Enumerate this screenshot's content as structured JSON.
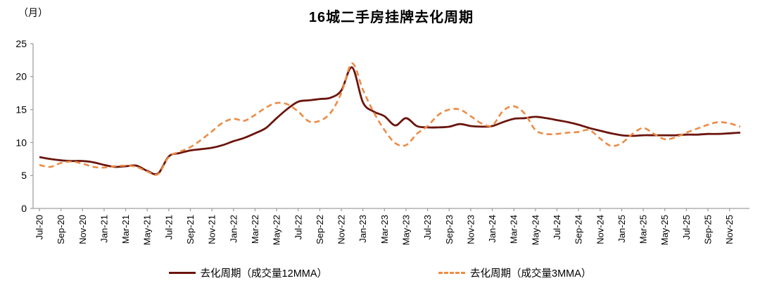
{
  "unit_label": "（月）",
  "title": "16城二手房挂牌去化周期",
  "chart_data": {
    "type": "line",
    "title": "16城二手房挂牌去化周期",
    "unit_label": "（月）",
    "ylim": [
      0,
      25
    ],
    "y_ticks": [
      0,
      5,
      10,
      15,
      20,
      25
    ],
    "x_tick_every": 2,
    "grid": false,
    "legend_position": "bottom",
    "axis_color": "#A0A0A0",
    "text_color": "#000000",
    "months": [
      "Jul-20",
      "Aug-20",
      "Sep-20",
      "Oct-20",
      "Nov-20",
      "Dec-20",
      "Jan-21",
      "Feb-21",
      "Mar-21",
      "Apr-21",
      "May-21",
      "Jun-21",
      "Jul-21",
      "Aug-21",
      "Sep-21",
      "Oct-21",
      "Nov-21",
      "Dec-21",
      "Jan-22",
      "Feb-22",
      "Mar-22",
      "Apr-22",
      "May-22",
      "Jun-22",
      "Jul-22",
      "Aug-22",
      "Sep-22",
      "Oct-22",
      "Nov-22",
      "Dec-22",
      "Jan-23",
      "Feb-23",
      "Mar-23",
      "Apr-23",
      "May-23",
      "Jun-23",
      "Jul-23",
      "Aug-23",
      "Sep-23",
      "Oct-23",
      "Nov-23",
      "Dec-23",
      "Jan-24",
      "Feb-24",
      "Mar-24",
      "Apr-24",
      "May-24",
      "Jun-24",
      "Jul-24",
      "Aug-24",
      "Sep-24",
      "Oct-24",
      "Nov-24",
      "Dec-24",
      "Jan-25",
      "Feb-25",
      "Mar-25",
      "Apr-25",
      "May-25",
      "Jun-25",
      "Jul-25",
      "Aug-25",
      "Sep-25",
      "Oct-25",
      "Nov-25",
      "Dec-25"
    ],
    "series": [
      {
        "name": "去化周期（成交量12MMA）",
        "style": "solid",
        "color": "#6B150D",
        "values": [
          7.8,
          7.5,
          7.3,
          7.2,
          7.2,
          7.0,
          6.6,
          6.3,
          6.4,
          6.5,
          5.7,
          5.3,
          7.9,
          8.4,
          8.8,
          9.0,
          9.2,
          9.6,
          10.2,
          10.7,
          11.4,
          12.2,
          13.7,
          15.1,
          16.2,
          16.4,
          16.6,
          16.8,
          17.9,
          21.4,
          16.1,
          14.7,
          14.0,
          12.6,
          13.7,
          12.5,
          12.3,
          12.3,
          12.4,
          12.8,
          12.5,
          12.4,
          12.5,
          13.1,
          13.6,
          13.7,
          13.9,
          13.7,
          13.4,
          13.1,
          12.7,
          12.2,
          11.8,
          11.4,
          11.1,
          11.0,
          11.1,
          11.1,
          11.1,
          11.1,
          11.2,
          11.2,
          11.3,
          11.3,
          11.4,
          11.5
        ]
      },
      {
        "name": "去化周期（成交量3MMA）",
        "style": "dashed",
        "color": "#ED8B45",
        "values": [
          6.6,
          6.3,
          6.9,
          7.1,
          6.8,
          6.3,
          6.2,
          6.4,
          6.5,
          6.3,
          5.6,
          5.2,
          7.8,
          8.6,
          9.3,
          10.4,
          11.7,
          13.0,
          13.6,
          13.3,
          14.2,
          15.3,
          16.0,
          15.8,
          14.7,
          13.2,
          13.3,
          14.5,
          17.5,
          22.0,
          18.0,
          14.6,
          11.9,
          9.9,
          9.6,
          11.3,
          12.5,
          14.2,
          15.0,
          15.0,
          14.0,
          12.9,
          12.6,
          14.8,
          15.5,
          14.4,
          11.9,
          11.3,
          11.3,
          11.5,
          11.6,
          11.9,
          10.6,
          9.5,
          9.9,
          11.3,
          12.2,
          11.3,
          10.5,
          10.8,
          11.5,
          12.1,
          12.7,
          13.1,
          12.9,
          12.4
        ]
      }
    ]
  }
}
